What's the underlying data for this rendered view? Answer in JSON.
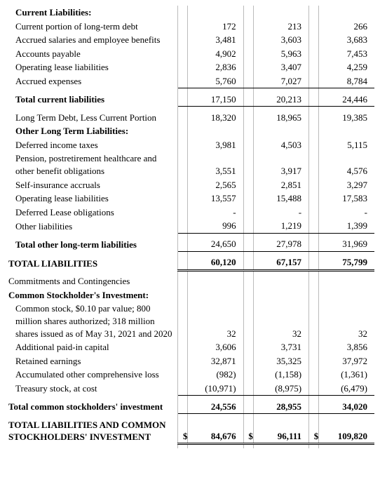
{
  "sections": {
    "currentLiabilities": {
      "heading": "Current Liabilities:",
      "rows": [
        {
          "label": "Current portion of long-term debt",
          "c1": "172",
          "c2": "213",
          "c3": "266"
        },
        {
          "label": "Accrued salaries and employee benefits",
          "c1": "3,481",
          "c2": "3,603",
          "c3": "3,683"
        },
        {
          "label": "Accounts payable",
          "c1": "4,902",
          "c2": "5,963",
          "c3": "7,453"
        },
        {
          "label": "Operating lease liabilities",
          "c1": "2,836",
          "c2": "3,407",
          "c3": "4,259"
        },
        {
          "label": "Accrued expenses",
          "c1": "5,760",
          "c2": "7,027",
          "c3": "8,784"
        }
      ],
      "total": {
        "label": "Total current liabilities",
        "c1": "17,150",
        "c2": "20,213",
        "c3": "24,446"
      }
    },
    "longTermDebt": {
      "label": "Long Term Debt, Less Current Portion",
      "c1": "18,320",
      "c2": "18,965",
      "c3": "19,385"
    },
    "otherLongTerm": {
      "heading": "Other Long Term Liabilities:",
      "rows": [
        {
          "label": "Deferred income taxes",
          "c1": "3,981",
          "c2": "4,503",
          "c3": "5,115"
        },
        {
          "label": "Pension, postretirement healthcare and other benefit obligations",
          "c1": "3,551",
          "c2": "3,917",
          "c3": "4,576"
        },
        {
          "label": "Self-insurance accruals",
          "c1": "2,565",
          "c2": "2,851",
          "c3": "3,297"
        },
        {
          "label": "Operating lease liabilities",
          "c1": "13,557",
          "c2": "15,488",
          "c3": "17,583"
        },
        {
          "label": "Deferred Lease obligations",
          "c1": "-",
          "c2": "-",
          "c3": "-"
        },
        {
          "label": "Other liabilities",
          "c1": "996",
          "c2": "1,219",
          "c3": "1,399"
        }
      ],
      "total": {
        "label": "Total other long-term liabilities",
        "c1": "24,650",
        "c2": "27,978",
        "c3": "31,969"
      }
    },
    "totalLiabilities": {
      "label": "TOTAL LIABILITIES",
      "c1": "60,120",
      "c2": "67,157",
      "c3": "75,799"
    },
    "commitments": {
      "label": "Commitments and Contingencies"
    },
    "stockholders": {
      "heading": "Common Stockholder's Investment:",
      "rows": [
        {
          "label": "Common stock, $0.10 par value; 800 million shares authorized; 318 million shares issued as of May 31, 2021 and 2020",
          "c1": "32",
          "c2": "32",
          "c3": "32"
        },
        {
          "label": "Additional paid-in capital",
          "c1": "3,606",
          "c2": "3,731",
          "c3": "3,856"
        },
        {
          "label": "Retained earnings",
          "c1": "32,871",
          "c2": "35,325",
          "c3": "37,972"
        },
        {
          "label": "Accumulated other comprehensive loss",
          "c1": "(982)",
          "c2": "(1,158)",
          "c3": "(1,361)"
        },
        {
          "label": "Treasury stock, at cost",
          "c1": "(10,971)",
          "c2": "(8,975)",
          "c3": "(6,479)"
        }
      ],
      "total": {
        "label": "Total common stockholders' investment",
        "c1": "24,556",
        "c2": "28,955",
        "c3": "34,020"
      }
    },
    "grandTotal": {
      "label": "TOTAL LIABILITIES AND COMMON STOCKHOLDERS' INVESTMENT",
      "s": "$",
      "c1": "84,676",
      "c2": "96,111",
      "c3": "109,820"
    }
  }
}
